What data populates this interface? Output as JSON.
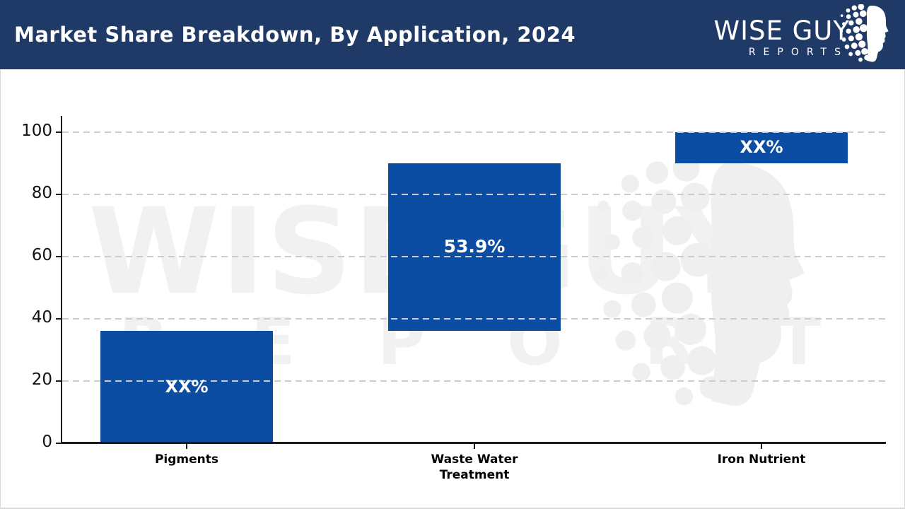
{
  "header": {
    "title": "Market Share Breakdown, By Application, 2024",
    "brand": {
      "line1": "WISE GUY",
      "line2": "REPORTS"
    }
  },
  "watermark": {
    "line1": "WISE GUY",
    "line2": "REPORTS"
  },
  "colors": {
    "header_bg": "#203a68",
    "bar": "#0b4da2",
    "axis": "#1a1a1a",
    "gridline": "#cccccc",
    "watermark": "#f1f1f1",
    "bar_label": "#ffffff"
  },
  "chart_data": {
    "type": "bar",
    "subtype": "waterfall",
    "title": "Market Share Breakdown, By Application, 2024",
    "categories": [
      "Pigments",
      "Waste Water Treatment",
      "Iron Nutrient"
    ],
    "points": [
      {
        "category": "Pigments",
        "start": 0,
        "end": 36.1,
        "label": "XX%"
      },
      {
        "category": "Waste Water Treatment",
        "start": 36.1,
        "end": 90,
        "label": "53.9%"
      },
      {
        "category": "Iron Nutrient",
        "start": 90,
        "end": 100,
        "label": "XX%"
      }
    ],
    "xlabel": "",
    "ylabel": "",
    "ylim": [
      0,
      100
    ],
    "yticks": [
      0,
      20,
      40,
      60,
      80,
      100
    ],
    "grid": "horizontal-dashed",
    "legend": "none"
  }
}
